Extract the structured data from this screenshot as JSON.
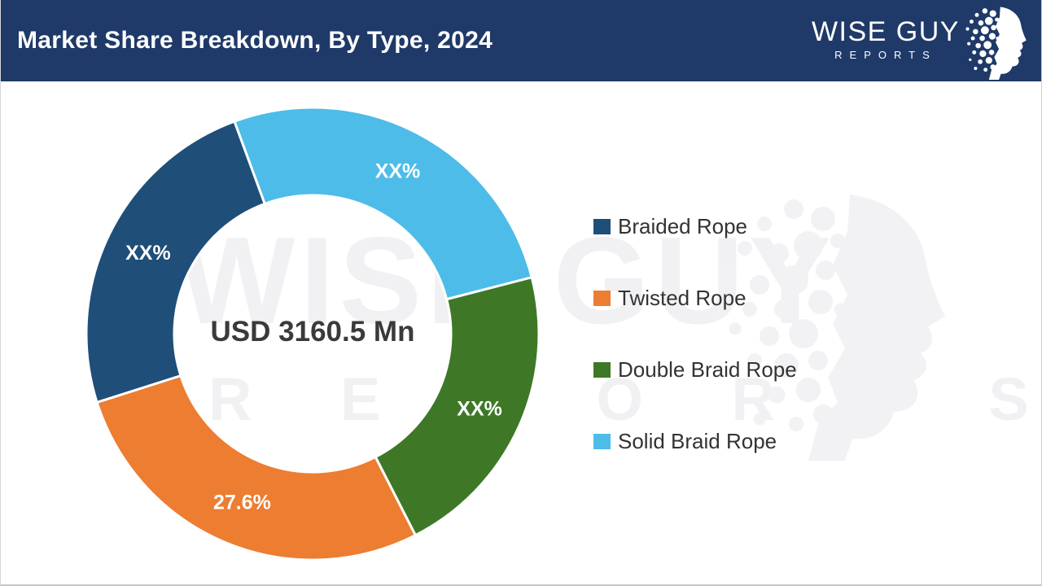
{
  "header": {
    "title": "Market Share Breakdown, By Type, 2024",
    "logo": {
      "line1": "WISE GUY",
      "line2": "REPORTS"
    }
  },
  "watermark": {
    "line1": "WISE GUY",
    "line2": "R E P O R T S"
  },
  "chart_data": {
    "type": "pie",
    "subtype": "donut",
    "title": "Market Share Breakdown, By Type, 2024",
    "center_total": "USD 3160.5 Mn",
    "start_angle_deg": 110.2,
    "direction": "counterclockwise",
    "legend_position": "right",
    "segments": [
      {
        "label": "Braided Rope",
        "display_value": "XX%",
        "percent_est": 24.3,
        "color": "#1f4e79"
      },
      {
        "label": "Twisted Rope",
        "display_value": "27.6%",
        "percent_est": 27.6,
        "color": "#ed7d31"
      },
      {
        "label": "Double Braid Rope",
        "display_value": "XX%",
        "percent_est": 21.5,
        "color": "#3e7827"
      },
      {
        "label": "Solid Braid Rope",
        "display_value": "XX%",
        "percent_est": 26.6,
        "color": "#4dbce8"
      }
    ],
    "colors": {
      "header_background": "#1f3a68",
      "center_text": "#3a3a3a",
      "legend_text": "#333333",
      "watermark": "#f1f1f4",
      "segment_gap": "#ffffff"
    }
  }
}
